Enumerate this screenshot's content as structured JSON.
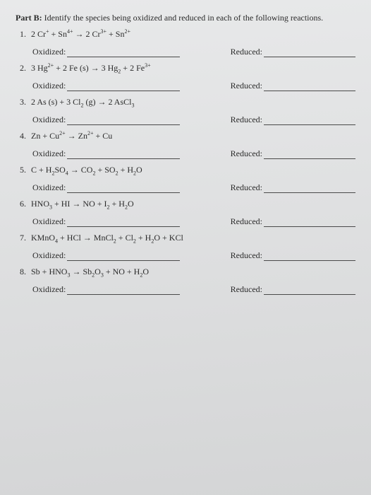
{
  "header": {
    "part_label": "Part B:",
    "instruction": "Identify the species being oxidized and reduced in each of the following reactions."
  },
  "labels": {
    "oxidized": "Oxidized:",
    "reduced": "Reduced:"
  },
  "questions": [
    {
      "num": "1.",
      "eq": "2 Cr⁺ + Sn⁴⁺ → 2 Cr³⁺ + Sn²⁺"
    },
    {
      "num": "2.",
      "eq": "3 Hg²⁺ + 2 Fe (s) → 3 Hg₂ + 2 Fe³⁺"
    },
    {
      "num": "3.",
      "eq": "2 As (s) + 3 Cl₂ (g) → 2 AsCl₃"
    },
    {
      "num": "4.",
      "eq": "Zn + Cu²⁺ → Zn²⁺ + Cu"
    },
    {
      "num": "5.",
      "eq": "C + H₂SO₄ → CO₂ + SO₂ + H₂O"
    },
    {
      "num": "6.",
      "eq": "HNO₃ + HI → NO + I₂ + H₂O"
    },
    {
      "num": "7.",
      "eq": "KMnO₄ + HCl → MnCl₂ + Cl₂ + H₂O + KCl"
    },
    {
      "num": "8.",
      "eq": "Sb + HNO₃ → Sb₂O₃ + NO + H₂O"
    }
  ],
  "eq_html": [
    "2 Cr<sup>+</sup> + Sn<sup>4+</sup> → 2 Cr<sup>3+</sup> + Sn<sup>2+</sup>",
    "3 Hg<sup>2+</sup> + 2 Fe (s) → 3 Hg<sub>2</sub> + 2 Fe<sup>3+</sup>",
    "2 As (s) + 3 Cl<sub>2</sub> (g) → 2 AsCl<sub>3</sub>",
    "Zn + Cu<sup>2+</sup> → Zn<sup>2+</sup> + Cu",
    "C + H<sub>2</sub>SO<sub>4</sub> → CO<sub>2</sub> + SO<sub>2</sub> + H<sub>2</sub>O",
    "HNO<sub>3</sub> + HI → NO + I<sub>2</sub> + H<sub>2</sub>O",
    "KMnO<sub>4</sub> + HCl → MnCl<sub>2</sub> + Cl<sub>2</sub> + H<sub>2</sub>O + KCl",
    "Sb + HNO<sub>3</sub> → Sb<sub>2</sub>O<sub>3</sub> + NO + H<sub>2</sub>O"
  ]
}
